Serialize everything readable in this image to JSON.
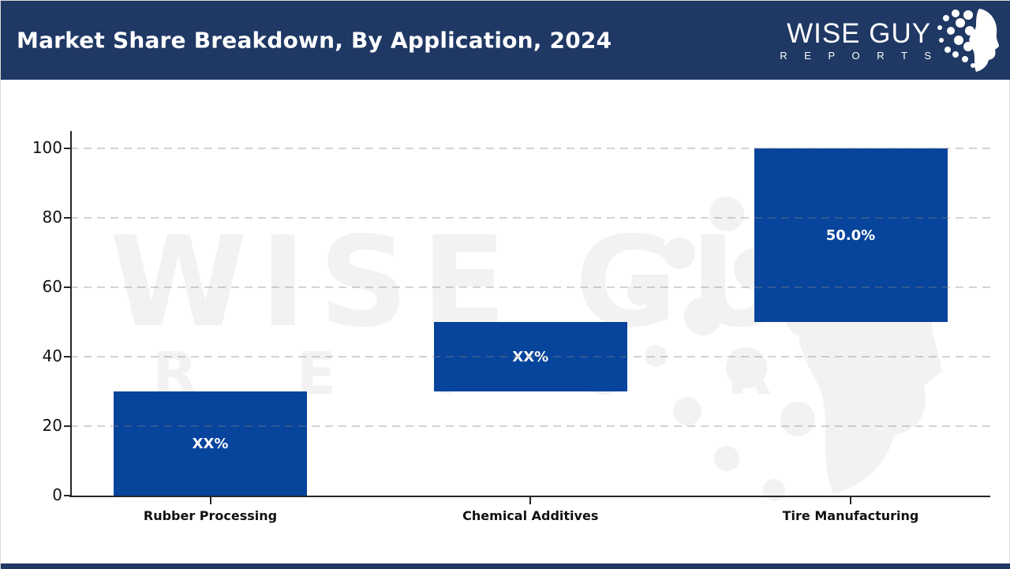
{
  "header": {
    "title": "Market Share Breakdown, By Application, 2024",
    "logo": {
      "line1": "WISE GUY",
      "line2": "R E P O R T S"
    }
  },
  "watermark": {
    "line1": "WISE GUY",
    "line2": "R E P O R T S"
  },
  "chart_data": {
    "type": "bar",
    "subtype": "floating-waterfall",
    "title": "Market Share Breakdown, By Application, 2024",
    "categories": [
      "Rubber Processing",
      "Chemical Additives",
      "Tire Manufacturing"
    ],
    "bars": [
      {
        "category": "Rubber Processing",
        "start": 0,
        "end": 30,
        "label": "XX%"
      },
      {
        "category": "Chemical Additives",
        "start": 30,
        "end": 50,
        "label": "XX%"
      },
      {
        "category": "Tire Manufacturing",
        "start": 50,
        "end": 100,
        "label": "50.0%"
      }
    ],
    "xlabel": "",
    "ylabel": "",
    "ylim": [
      0,
      105
    ],
    "yticks": [
      0,
      20,
      40,
      60,
      80,
      100
    ],
    "grid": "horizontal-dashed-over-bars",
    "legend": "none"
  },
  "colors": {
    "header_bg": "#1f3864",
    "footer_bg": "#1f3864",
    "bar_fill": "#07449c",
    "axis": "#262626",
    "grid_rgba": "rgba(128,128,128,0.35)",
    "watermark": "#f2f2f2",
    "title_text": "#ffffff",
    "bar_label_text": "#ffffff",
    "tick_text": "#111111"
  }
}
